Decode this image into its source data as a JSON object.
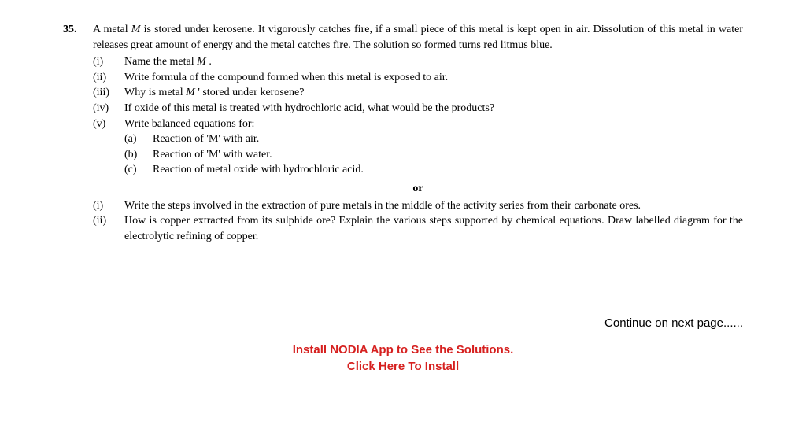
{
  "colors": {
    "text": "#000000",
    "background": "#ffffff",
    "accent_red": "#d6201f"
  },
  "question": {
    "number": "35.",
    "intro_lines": [
      "A metal M is stored under kerosene. It vigorously catches fire, if a small piece of this metal is kept open in air. Dissolution of this metal in water releases great amount of energy and the metal catches fire. The solution so formed turns red litmus blue."
    ],
    "parts": [
      {
        "label": "(i)",
        "text": "Name the metal M ."
      },
      {
        "label": "(ii)",
        "text": "Write formula of the compound formed when this metal is exposed to air."
      },
      {
        "label": "(iii)",
        "text": "Why is metal M ' stored under kerosene?"
      },
      {
        "label": "(iv)",
        "text": "If oxide of this metal is treated with hydrochloric acid, what would be the products?"
      },
      {
        "label": "(v)",
        "text": "Write balanced equations for:"
      }
    ],
    "subparts": [
      {
        "label": "(a)",
        "text": "Reaction of 'M' with air."
      },
      {
        "label": "(b)",
        "text": "Reaction of 'M' with water."
      },
      {
        "label": "(c)",
        "text": "Reaction of metal oxide with hydrochloric acid."
      }
    ],
    "or": "or",
    "alt_parts": [
      {
        "label": "(i)",
        "text": "Write the steps involved in the extraction of pure metals in the middle of the activity series from their carbonate ores."
      },
      {
        "label": "(ii)",
        "text": "How is copper extracted from its sulphide ore? Explain the various steps supported by chemical equations. Draw labelled diagram for the electrolytic refining of copper."
      }
    ]
  },
  "footer": {
    "continue": "Continue on next page......",
    "promo_line1": "Install NODIA App to See the Solutions.",
    "promo_line2": "Click Here To Install"
  }
}
